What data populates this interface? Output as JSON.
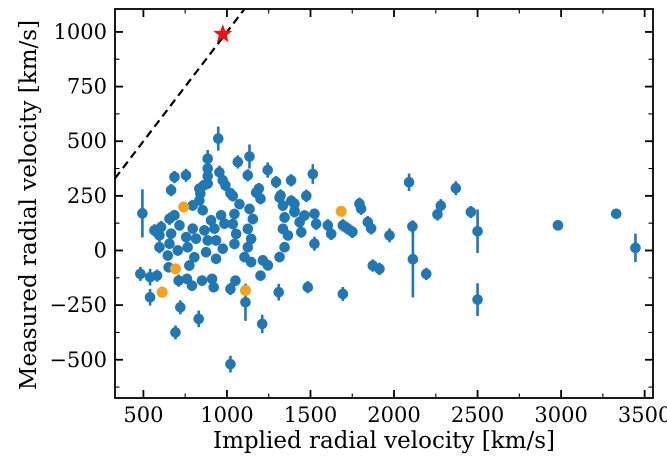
{
  "page": {
    "background": "#ffffff"
  },
  "chart_data": {
    "type": "scatter",
    "title": "",
    "xlabel": "Implied radial velocity [km/s]",
    "ylabel": "Measured radial velocity [km/s]",
    "xlim": [
      330,
      3550
    ],
    "ylim": [
      -675,
      1105
    ],
    "grid": false,
    "legend": null,
    "tick_style": "inward, all four spines, serif labels",
    "x_ticks": {
      "major_values": [
        500,
        1000,
        1500,
        2000,
        2500,
        3000,
        3500
      ],
      "major_labels": [
        "500",
        "1000",
        "1500",
        "2000",
        "2500",
        "3000",
        "3500"
      ],
      "minor_values": [
        750,
        1250,
        1750,
        2250,
        2750,
        3250
      ]
    },
    "y_ticks": {
      "major_values": [
        1000,
        750,
        500,
        250,
        0,
        -250,
        -500
      ],
      "major_labels": [
        "1000",
        "750",
        "500",
        "250",
        "0",
        "−250",
        "−500"
      ],
      "minor_values": [
        875,
        625,
        375,
        125,
        -125,
        -375,
        -625
      ]
    },
    "reference_line": {
      "label": "one-to-one line y = x",
      "style": "dashed",
      "color": "#000000",
      "slope": 1,
      "intercept": 0
    },
    "series": [
      {
        "name": "measured-vs-implied",
        "marker": "circle",
        "color": "#1f77b4",
        "marker_radius_px": 5.3,
        "has_yerr": true,
        "points": [
          [
            948,
            512,
            55
          ],
          [
            1135,
            430,
            55
          ],
          [
            885,
            420,
            40
          ],
          [
            1065,
            405,
            30
          ],
          [
            1244,
            368,
            35
          ],
          [
            885,
            375,
            30
          ],
          [
            955,
            358,
            30
          ],
          [
            1514,
            350,
            45
          ],
          [
            755,
            344,
            30
          ],
          [
            686,
            336,
            28
          ],
          [
            1125,
            344,
            28
          ],
          [
            885,
            340,
            25
          ],
          [
            975,
            321,
            28
          ],
          [
            1294,
            313,
            28
          ],
          [
            1384,
            321,
            28
          ],
          [
            2090,
            312,
            40
          ],
          [
            885,
            306,
            24
          ],
          [
            861,
            298,
            24
          ],
          [
            991,
            298,
            26
          ],
          [
            2370,
            285,
            32
          ],
          [
            1191,
            283,
            26
          ],
          [
            666,
            276,
            28
          ],
          [
            835,
            283,
            24
          ],
          [
            1321,
            252,
            28
          ],
          [
            1035,
            250,
            26
          ],
          [
            1021,
            262,
            24
          ],
          [
            841,
            260,
            24
          ],
          [
            1175,
            265,
            24
          ],
          [
            1475,
            250,
            28
          ],
          [
            1201,
            237,
            26
          ],
          [
            1315,
            242,
            24
          ],
          [
            835,
            229,
            24
          ],
          [
            1385,
            227,
            26
          ],
          [
            1075,
            212,
            24
          ],
          [
            2280,
            205,
            30
          ],
          [
            795,
            206,
            24
          ],
          [
            855,
            184,
            24
          ],
          [
            1335,
            205,
            24
          ],
          [
            1405,
            182,
            26
          ],
          [
            1793,
            214,
            28
          ],
          [
            1803,
            191,
            28
          ],
          [
            2260,
            165,
            28
          ],
          [
            2460,
            176,
            28
          ],
          [
            494,
            170,
            110
          ],
          [
            656,
            145,
            28
          ],
          [
            686,
            161,
            24
          ],
          [
            965,
            161,
            24
          ],
          [
            905,
            138,
            24
          ],
          [
            1045,
            167,
            24
          ],
          [
            1135,
            190,
            24
          ],
          [
            1155,
            144,
            24
          ],
          [
            1345,
            151,
            24
          ],
          [
            1435,
            130,
            26
          ],
          [
            1843,
            130,
            28
          ],
          [
            1863,
            101,
            28
          ],
          [
            1604,
            115,
            28
          ],
          [
            1534,
            122,
            28
          ],
          [
            3330,
            168,
            22
          ],
          [
            2981,
            115,
            20
          ],
          [
            716,
            115,
            24
          ],
          [
            606,
            107,
            28
          ],
          [
            795,
            100,
            24
          ],
          [
            925,
            100,
            24
          ],
          [
            1035,
            121,
            24
          ],
          [
            1125,
            99,
            24
          ],
          [
            985,
            123,
            24
          ],
          [
            2110,
            110,
            28
          ],
          [
            566,
            92,
            28
          ],
          [
            865,
            92,
            24
          ],
          [
            1335,
            99,
            24
          ],
          [
            1445,
            84,
            26
          ],
          [
            2500,
            88,
            100
          ],
          [
            596,
            69,
            26
          ],
          [
            666,
            77,
            24
          ],
          [
            815,
            54,
            24
          ],
          [
            1055,
            76,
            24
          ],
          [
            1365,
            69,
            24
          ],
          [
            1624,
            76,
            28
          ],
          [
            1973,
            69,
            32
          ],
          [
            756,
            61,
            24
          ],
          [
            885,
            46,
            24
          ],
          [
            935,
            46,
            24
          ],
          [
            1145,
            53,
            24
          ],
          [
            596,
            15,
            28
          ],
          [
            656,
            31,
            24
          ],
          [
            765,
            15,
            24
          ],
          [
            875,
            -8,
            24
          ],
          [
            975,
            8,
            24
          ],
          [
            1045,
            30,
            24
          ],
          [
            1125,
            15,
            24
          ],
          [
            1345,
            15,
            24
          ],
          [
            1524,
            31,
            32
          ],
          [
            3445,
            12,
            65
          ],
          [
            706,
            0,
            24
          ],
          [
            646,
            -23,
            24
          ],
          [
            805,
            -31,
            24
          ],
          [
            935,
            -38,
            24
          ],
          [
            1105,
            -30,
            24
          ],
          [
            1315,
            -30,
            24
          ],
          [
            2113,
            -40,
            175
          ],
          [
            1145,
            -53,
            24
          ],
          [
            1215,
            -45,
            24
          ],
          [
            1245,
            -68,
            24
          ],
          [
            775,
            -69,
            24
          ],
          [
            1873,
            -69,
            28
          ],
          [
            1913,
            -84,
            28
          ],
          [
            482,
            -107,
            32
          ],
          [
            540,
            -122,
            38
          ],
          [
            582,
            -115,
            28
          ],
          [
            651,
            -77,
            24
          ],
          [
            711,
            -138,
            28
          ],
          [
            761,
            -130,
            24
          ],
          [
            791,
            -161,
            24
          ],
          [
            851,
            -138,
            24
          ],
          [
            911,
            -130,
            24
          ],
          [
            921,
            -168,
            24
          ],
          [
            1021,
            -176,
            28
          ],
          [
            1051,
            -138,
            24
          ],
          [
            1201,
            -115,
            24
          ],
          [
            1310,
            -191,
            38
          ],
          [
            1484,
            -168,
            28
          ],
          [
            1694,
            -199,
            32
          ],
          [
            2193,
            -107,
            28
          ],
          [
            2500,
            -225,
            75
          ],
          [
            540,
            -214,
            38
          ],
          [
            721,
            -260,
            32
          ],
          [
            831,
            -313,
            38
          ],
          [
            692,
            -375,
            32
          ],
          [
            1111,
            -237,
            85
          ],
          [
            1211,
            -336,
            42
          ],
          [
            1021,
            -520,
            38
          ],
          [
            1404,
            214,
            24
          ],
          [
            1404,
            176,
            24
          ],
          [
            1464,
            160,
            24
          ],
          [
            1524,
            168,
            24
          ],
          [
            1694,
            115,
            28
          ],
          [
            1721,
            101,
            28
          ],
          [
            1751,
            85,
            28
          ]
        ]
      },
      {
        "name": "highlighted-points",
        "marker": "circle",
        "color": "#f5a21d",
        "marker_radius_px": 5.5,
        "has_yerr": false,
        "points": [
          [
            741,
            199
          ],
          [
            1684,
            179
          ],
          [
            692,
            -84
          ],
          [
            612,
            -191
          ],
          [
            1111,
            -183
          ]
        ]
      },
      {
        "name": "star-outlier",
        "marker": "star",
        "color": "#ee1111",
        "marker_radius_px": 10,
        "has_yerr": false,
        "points": [
          [
            975,
            990
          ]
        ]
      }
    ]
  }
}
